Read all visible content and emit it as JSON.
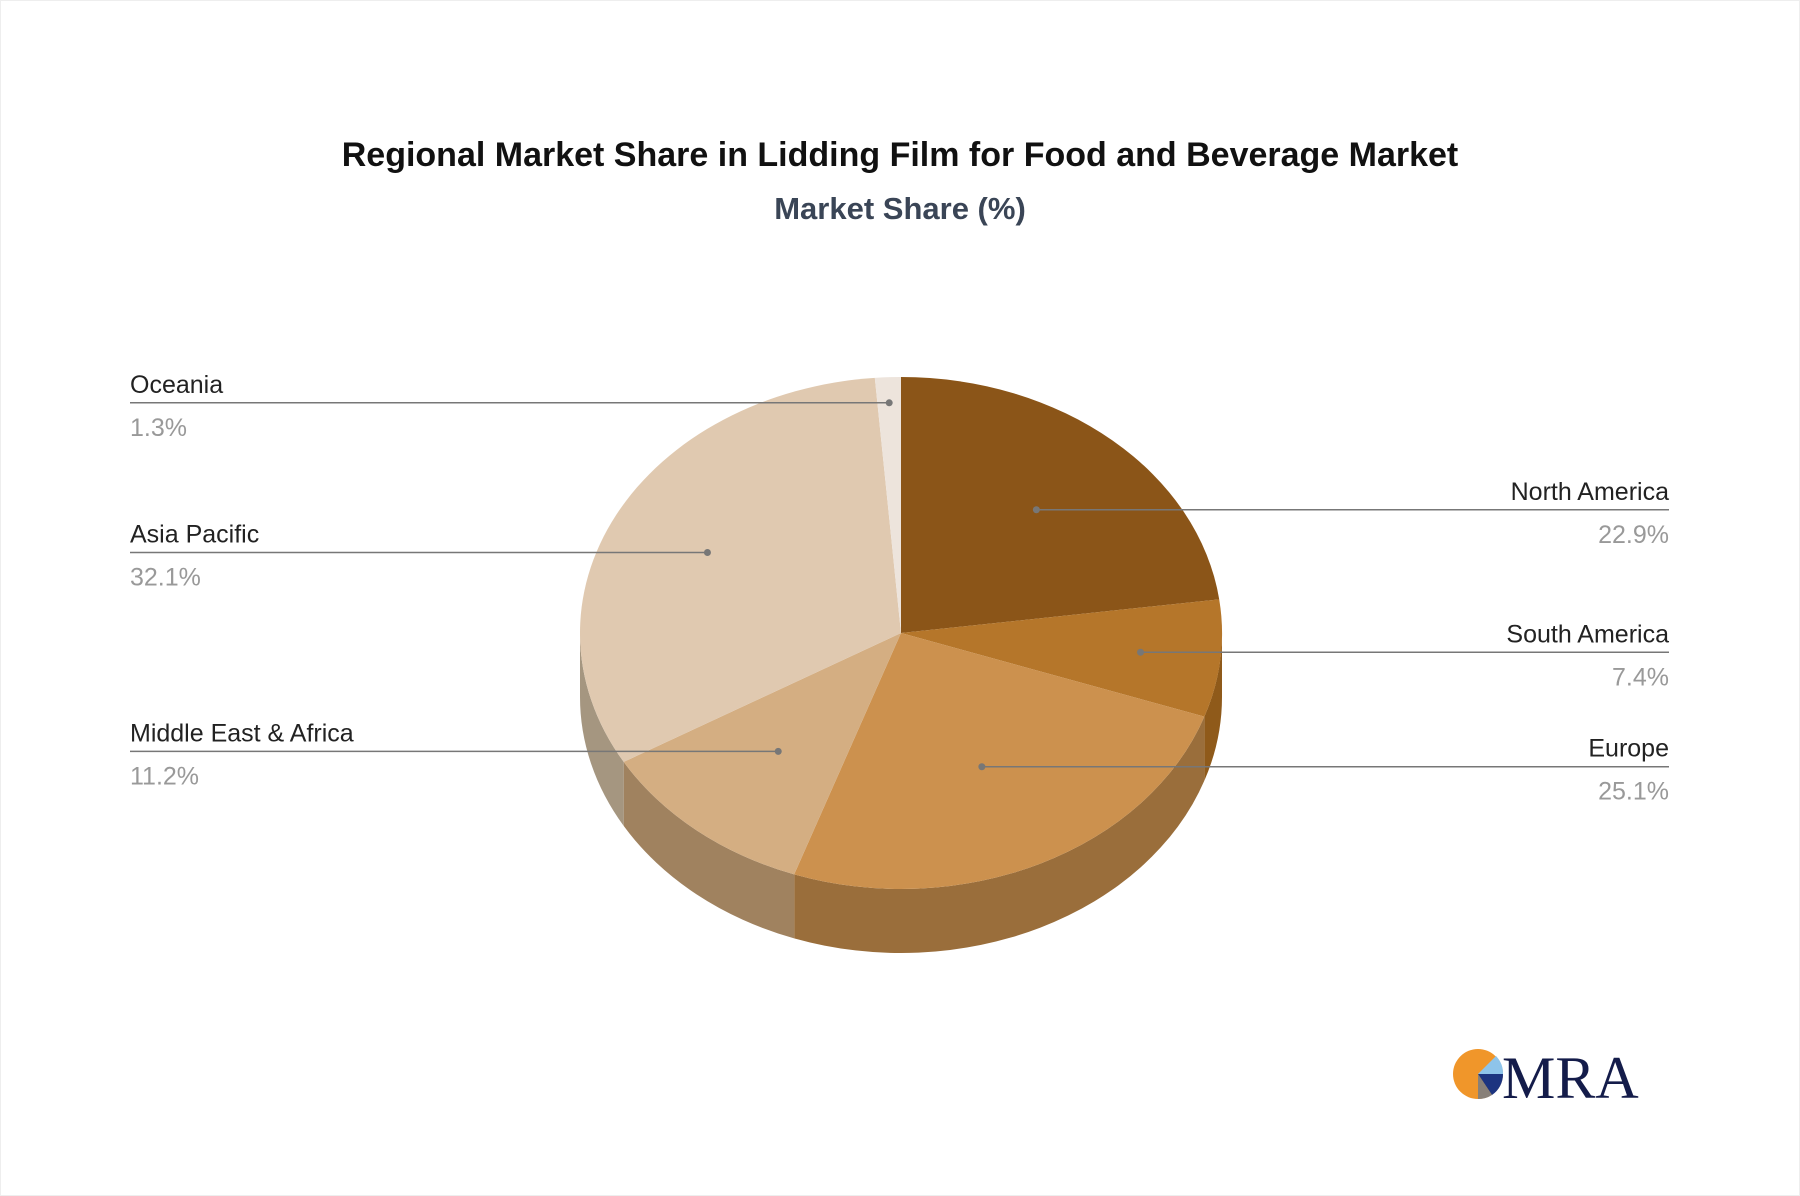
{
  "chart_data": {
    "type": "pie",
    "style": "3d",
    "title": "Regional Market Share in Lidding Film for Food and Beverage Market",
    "subtitle": "Market Share (%)",
    "slices": [
      {
        "name": "North America",
        "value": 22.9,
        "label": "22.9%",
        "color": "#8b5518",
        "side": "#7d4c15"
      },
      {
        "name": "South America",
        "value": 7.4,
        "label": "7.4%",
        "color": "#b5762a",
        "side": "#8f5a1a"
      },
      {
        "name": "Europe",
        "value": 25.1,
        "label": "25.1%",
        "color": "#cc914e",
        "side": "#9a6e3b"
      },
      {
        "name": "Middle East & Africa",
        "value": 11.2,
        "label": "11.2%",
        "color": "#d4ae82",
        "side": "#a0825f"
      },
      {
        "name": "Asia Pacific",
        "value": 32.1,
        "label": "32.1%",
        "color": "#e0c9b0",
        "side": "#a59680"
      },
      {
        "name": "Oceania",
        "value": 1.3,
        "label": "1.3%",
        "color": "#ede4dc",
        "side": "#b0a89f"
      }
    ]
  },
  "logo": {
    "text": "MRA"
  }
}
